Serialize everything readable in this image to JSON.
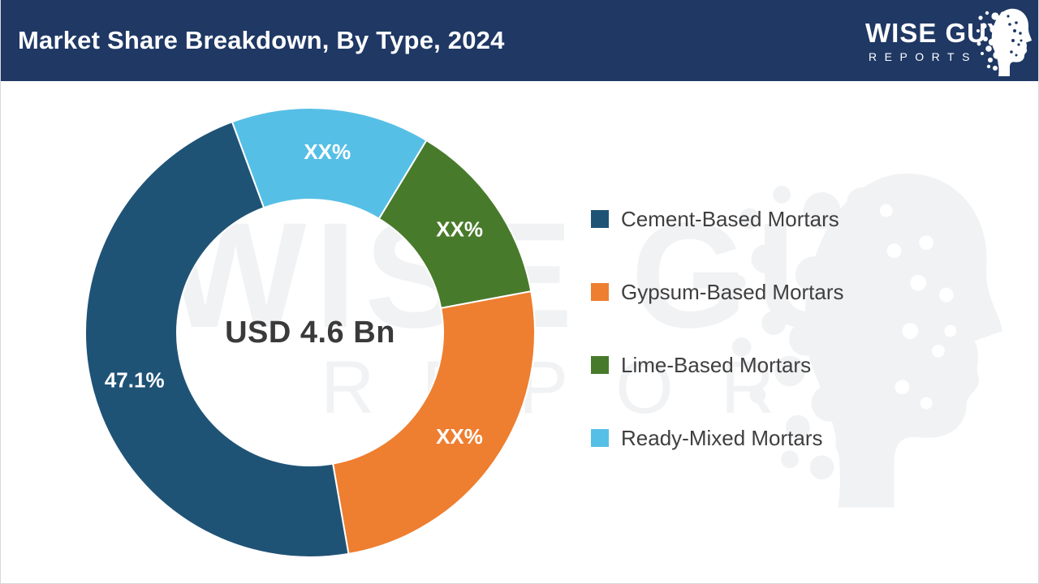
{
  "page": {
    "bg": "#ffffff",
    "border_color": "#d8d8d8"
  },
  "header": {
    "bg": "#1f3864",
    "title": "Market Share Breakdown, By Type, 2024",
    "text_color": "#ffffff",
    "logo": {
      "line1": "WISE GUY",
      "line2": "REPORTS"
    }
  },
  "chart_data": {
    "type": "pie",
    "subtype": "donut",
    "title": "Market Share Breakdown, By Type, 2024",
    "center_label": "USD 4.6 Bn",
    "units": "percent of market share",
    "start_angle_deg": -20.3,
    "clockwise": true,
    "legend_position": "right",
    "slices": [
      {
        "category": "Ready-Mixed Mortars",
        "value_pct": 14.3,
        "data_label": "XX%",
        "color": "#56bfe6"
      },
      {
        "category": "Lime-Based Mortars",
        "value_pct": 13.4,
        "data_label": "XX%",
        "color": "#487a2b"
      },
      {
        "category": "Gypsum-Based Mortars",
        "value_pct": 25.2,
        "data_label": "XX%",
        "color": "#ee7e30"
      },
      {
        "category": "Cement-Based Mortars",
        "value_pct": 47.1,
        "data_label": "47.1%",
        "color": "#1f5376"
      }
    ]
  },
  "legend": {
    "items": [
      {
        "label": "Cement-Based Mortars",
        "color": "#1f5376"
      },
      {
        "label": "Gypsum-Based Mortars",
        "color": "#ee7e30"
      },
      {
        "label": "Lime-Based Mortars",
        "color": "#487a2b"
      },
      {
        "label": "Ready-Mixed Mortars",
        "color": "#56bfe6"
      }
    ]
  },
  "watermark": {
    "line1": "WISE GUY",
    "line2": "REPORTS",
    "color": "#f1f2f4"
  }
}
